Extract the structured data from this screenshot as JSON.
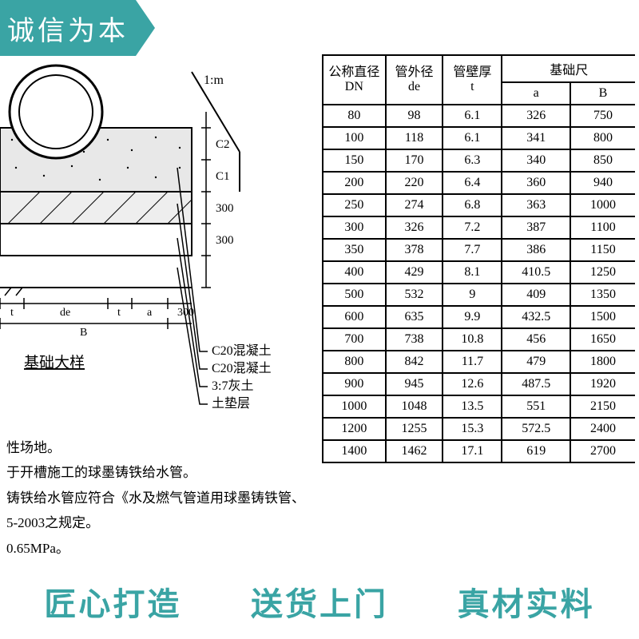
{
  "badge_tl": "诚信为本",
  "bottom_bar": {
    "a": "匠心打造",
    "b": "送货上门",
    "c": "真材实料"
  },
  "diagram": {
    "title": "基础大样",
    "callouts": {
      "c20_1": "C20混凝土",
      "c20_2": "C20混凝土",
      "lime": "3:7灰土",
      "soil": "土垫层"
    },
    "dims": {
      "slope": "1:m",
      "c2": "C2",
      "c1": "C1",
      "h1": "300",
      "h2": "300",
      "h3": "300",
      "de": "de",
      "t": "t",
      "a": "a",
      "B": "B"
    },
    "colors": {
      "stroke": "#000000",
      "pipe_fill": "#ffffff",
      "concrete_fill": "#dcdcdc",
      "lime_fill": "#ffffff",
      "hatch": "#000000"
    },
    "line_width": 2
  },
  "notes": {
    "l1": "性场地。",
    "l2": "于开槽施工的球墨铸铁给水管。",
    "l3": "铸铁给水管应符合《水及燃气管道用球墨铸铁管、",
    "l4": "5-2003之规定。",
    "l5": "0.65MPa。"
  },
  "table": {
    "header_group_label": "基础尺",
    "columns": {
      "dn_top": "公称直径",
      "de_top": "管外径",
      "t_top": "管壁厚",
      "dn": "DN",
      "de": "de",
      "t": "t",
      "a": "a",
      "B": "B"
    },
    "rows": [
      {
        "dn": "80",
        "de": "98",
        "t": "6.1",
        "a": "326",
        "B": "750"
      },
      {
        "dn": "100",
        "de": "118",
        "t": "6.1",
        "a": "341",
        "B": "800"
      },
      {
        "dn": "150",
        "de": "170",
        "t": "6.3",
        "a": "340",
        "B": "850"
      },
      {
        "dn": "200",
        "de": "220",
        "t": "6.4",
        "a": "360",
        "B": "940"
      },
      {
        "dn": "250",
        "de": "274",
        "t": "6.8",
        "a": "363",
        "B": "1000"
      },
      {
        "dn": "300",
        "de": "326",
        "t": "7.2",
        "a": "387",
        "B": "1100"
      },
      {
        "dn": "350",
        "de": "378",
        "t": "7.7",
        "a": "386",
        "B": "1150"
      },
      {
        "dn": "400",
        "de": "429",
        "t": "8.1",
        "a": "410.5",
        "B": "1250"
      },
      {
        "dn": "500",
        "de": "532",
        "t": "9",
        "a": "409",
        "B": "1350"
      },
      {
        "dn": "600",
        "de": "635",
        "t": "9.9",
        "a": "432.5",
        "B": "1500"
      },
      {
        "dn": "700",
        "de": "738",
        "t": "10.8",
        "a": "456",
        "B": "1650"
      },
      {
        "dn": "800",
        "de": "842",
        "t": "11.7",
        "a": "479",
        "B": "1800"
      },
      {
        "dn": "900",
        "de": "945",
        "t": "12.6",
        "a": "487.5",
        "B": "1920"
      },
      {
        "dn": "1000",
        "de": "1048",
        "t": "13.5",
        "a": "551",
        "B": "2150"
      },
      {
        "dn": "1200",
        "de": "1255",
        "t": "15.3",
        "a": "572.5",
        "B": "2400"
      },
      {
        "dn": "1400",
        "de": "1462",
        "t": "17.1",
        "a": "619",
        "B": "2700"
      }
    ],
    "border_color": "#000000",
    "font_size": 16
  }
}
